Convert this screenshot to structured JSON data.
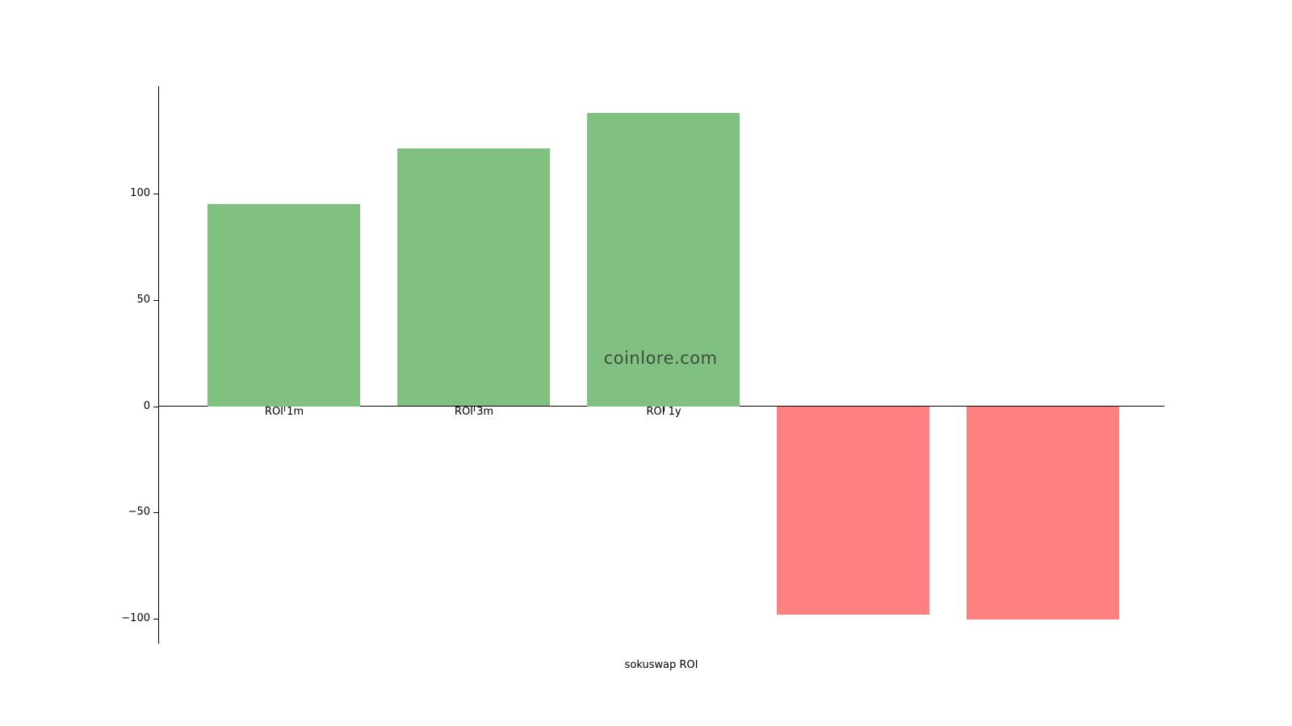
{
  "watermark": {
    "text": "coinlore.com"
  },
  "chart_data": {
    "type": "bar",
    "title": "",
    "xlabel": "sokuswap ROI",
    "ylabel": "",
    "categories": [
      "ROI 1m",
      "ROI 3m",
      "ROI 1y",
      "",
      ""
    ],
    "values": [
      95,
      121,
      138,
      -98,
      -100
    ],
    "bar_colors": [
      "#80c080",
      "#80c080",
      "#80c080",
      "#ff8080",
      "#ff8080"
    ],
    "y_ticks": [
      100,
      50,
      0,
      -50,
      -100
    ],
    "y_tick_labels": [
      "100",
      "50",
      "0",
      "−50",
      "−100"
    ],
    "ylim": [
      -112,
      150
    ],
    "grid": false,
    "legend_position": "none",
    "colors": {
      "positive_bar": "#80c080",
      "negative_bar": "#ff8080",
      "axis": "#000000",
      "background": "#ffffff"
    }
  }
}
